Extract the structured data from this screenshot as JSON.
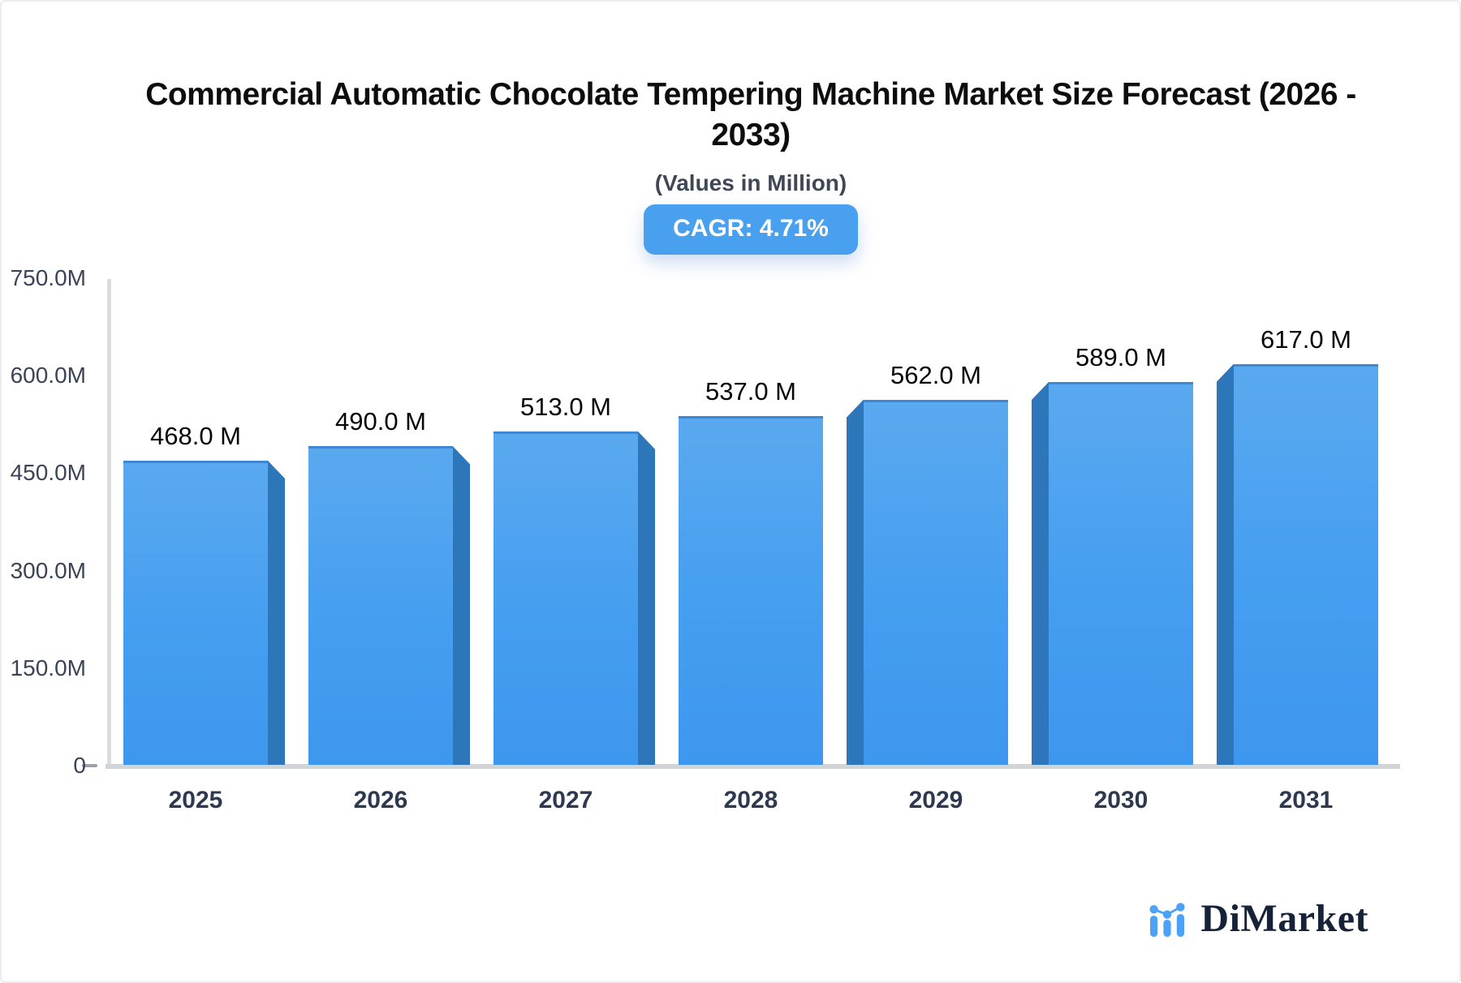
{
  "title": {
    "line1": "Commercial Automatic Chocolate Tempering Machine Market Size Forecast (2026 -",
    "line2": "2033)"
  },
  "subtitle": "(Values in Million)",
  "badge_label": "CAGR: 4.71%",
  "chart_data": {
    "type": "bar",
    "title": "Commercial Automatic Chocolate Tempering Machine Market Size Forecast (2026 - 2033)",
    "subtitle": "(Values in Million)",
    "cagr": "4.71%",
    "categories": [
      "2025",
      "2026",
      "2027",
      "2028",
      "2029",
      "2030",
      "2031"
    ],
    "values": [
      468,
      490,
      513,
      537,
      562,
      589,
      617
    ],
    "value_labels": [
      "468.0 M",
      "490.0 M",
      "513.0 M",
      "537.0 M",
      "562.0 M",
      "589.0 M",
      "617.0 M"
    ],
    "unit": "Million",
    "xlabel": "",
    "ylabel": "",
    "ylim": [
      0,
      750
    ],
    "ytick_values": [
      0,
      150,
      300,
      450,
      600,
      750
    ],
    "ytick_labels": [
      "0",
      "150.0M",
      "300.0M",
      "450.0M",
      "600.0M",
      "750.0M"
    ],
    "grid": false,
    "legend": false
  },
  "colors": {
    "bar_top": "#5aa9ef",
    "bar_bottom": "#3e97ee",
    "bar_side_shadow": "#2e76ba",
    "badge_bg": "#49a0ee",
    "axis_line": "#dadcdf",
    "logo_accent": "#4ba2f6",
    "logo_text": "#152238"
  },
  "logo": {
    "text": "DiMarket"
  }
}
